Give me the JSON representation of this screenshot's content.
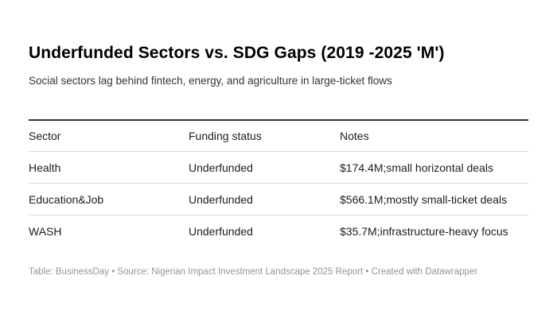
{
  "chart_data": {
    "type": "table",
    "title": "Underfunded Sectors vs. SDG Gaps (2019 -2025 'M')",
    "subtitle": "Social sectors lag behind fintech, energy, and agriculture in large-ticket flows",
    "columns": [
      "Sector",
      "Funding status",
      "Notes"
    ],
    "rows": [
      [
        "Health",
        "Underfunded",
        "$174.4M;small horizontal deals"
      ],
      [
        "Education&Job",
        "Underfunded",
        "$566.1M;mostly small-ticket deals"
      ],
      [
        "WASH",
        "Underfunded",
        "$35.7M;infrastructure-heavy focus"
      ]
    ],
    "footer_attribution": "Table: BusinessDay • Source: Nigerian Impact Investment Landscape 2025 Report • Created with Datawrapper",
    "layout": {
      "grid": "horizontal-row-dividers-only",
      "header_rule": "heavy-top-2px",
      "legend": "none"
    }
  },
  "colors": {
    "background": "#ffffff",
    "title_text": "#000000",
    "body_text": "#1d1d1d",
    "muted_text": "#949494",
    "heavy_border": "#333333",
    "light_border": "#dadada"
  }
}
